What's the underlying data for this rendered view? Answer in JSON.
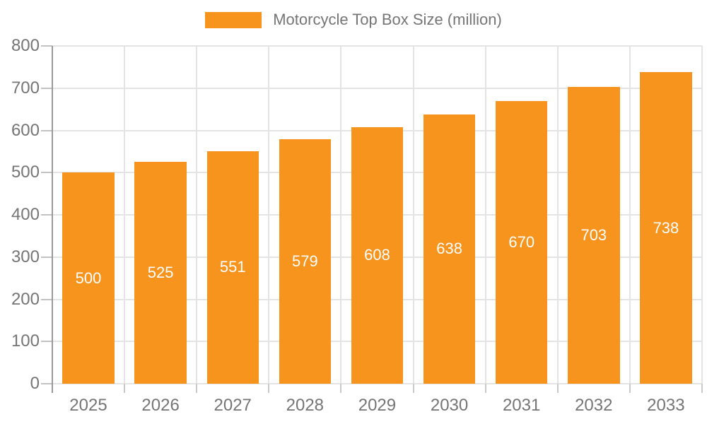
{
  "legend": {
    "label": "Motorcycle Top Box Size (million)"
  },
  "colors": {
    "bar": "#F7941E",
    "value_label": "#FFFFFF",
    "axis_text": "#757575",
    "gridline": "#E4E4E4",
    "axis_line": "#9A9A9A"
  },
  "chart_data": {
    "type": "bar",
    "title": "Motorcycle Top Box Size (million)",
    "categories": [
      "2025",
      "2026",
      "2027",
      "2028",
      "2029",
      "2030",
      "2031",
      "2032",
      "2033"
    ],
    "values": [
      500,
      525,
      551,
      579,
      608,
      638,
      670,
      703,
      738
    ],
    "xlabel": "",
    "ylabel": "",
    "ylim": [
      0,
      800
    ],
    "yticks": [
      0,
      100,
      200,
      300,
      400,
      500,
      600,
      700,
      800
    ],
    "grid": true,
    "legend_position": "top-center",
    "bar_color": "#F7941E",
    "value_labels": "centered-inside-white"
  }
}
